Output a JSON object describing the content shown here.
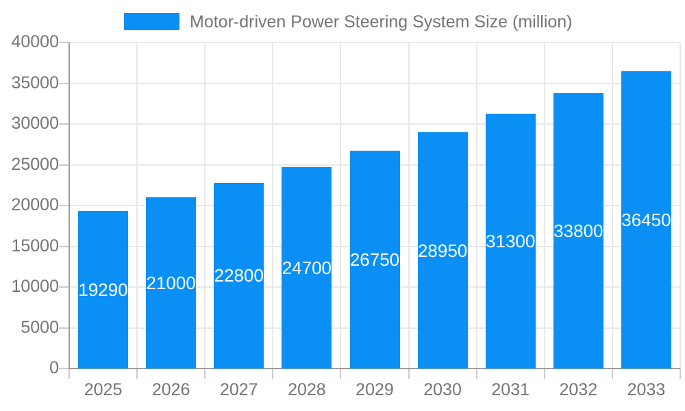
{
  "legend": {
    "label": "Motor-driven Power Steering System Size (million)",
    "swatch_color": "#0a8ff5"
  },
  "chart_data": {
    "type": "bar",
    "title": "Motor-driven Power Steering System Size (million)",
    "categories": [
      "2025",
      "2026",
      "2027",
      "2028",
      "2029",
      "2030",
      "2031",
      "2032",
      "2033"
    ],
    "values": [
      19290,
      21000,
      22800,
      24700,
      26750,
      28950,
      31300,
      33800,
      36450
    ],
    "xlabel": "",
    "ylabel": "",
    "ylim": [
      0,
      40000
    ],
    "ytick_step": 5000,
    "ytick_labels": [
      "0",
      "5000",
      "10000",
      "15000",
      "20000",
      "25000",
      "30000",
      "35000",
      "40000"
    ],
    "grid": true,
    "legend_position": "top-center",
    "value_labels": "inside-center",
    "colors": {
      "bar": "#0a8ff5",
      "value_label": "#ffffff",
      "axis_label": "#757575",
      "title_text": "#757575",
      "gridline": "#e8e8e8",
      "axis_line": "#9e9e9e",
      "tick": "#cccccc",
      "background": "#ffffff"
    }
  }
}
